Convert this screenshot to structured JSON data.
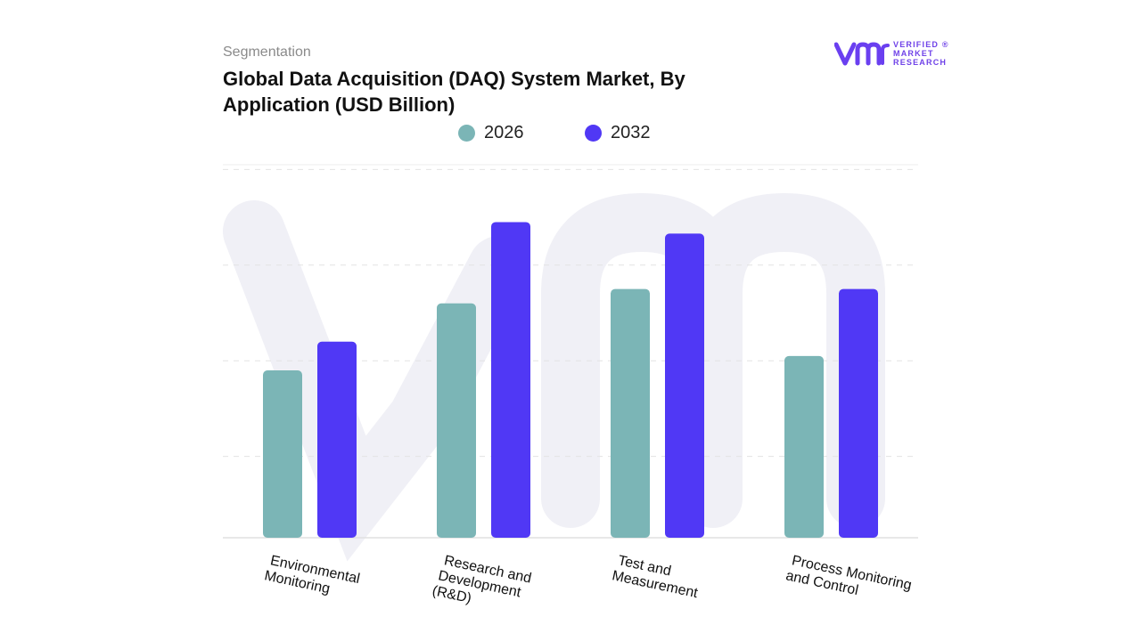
{
  "header": {
    "segment": "Segmentation",
    "title": "Global Data Acquisition (DAQ) System Market, By Application (USD Billion)"
  },
  "logo": {
    "line1": "VERIFIED",
    "line2": "MARKET",
    "line3": "RESEARCH",
    "reg": "®",
    "color": "#6a3ff0"
  },
  "colors": {
    "series_2026": "#7bb5b6",
    "series_2032": "#5038f5",
    "gridline": "#e3e3e3",
    "watermark": "#f0f0f6"
  },
  "chart_data": {
    "type": "bar",
    "title": "Global Data Acquisition (DAQ) System Market, By Application (USD Billion)",
    "xlabel": "",
    "ylabel": "",
    "categories": [
      [
        "Environmental",
        "Monitoring"
      ],
      [
        "Research and",
        "Development",
        "(R&D)"
      ],
      [
        "Test and",
        "Measurement"
      ],
      [
        "Process Monitoring",
        "and Control"
      ]
    ],
    "series": [
      {
        "name": "2026",
        "values": [
          1.75,
          2.45,
          2.6,
          1.9
        ]
      },
      {
        "name": "2032",
        "values": [
          2.05,
          3.3,
          3.18,
          2.6
        ]
      }
    ],
    "ylim": [
      0,
      3.9
    ],
    "grid": true,
    "legend_position": "top-center"
  }
}
